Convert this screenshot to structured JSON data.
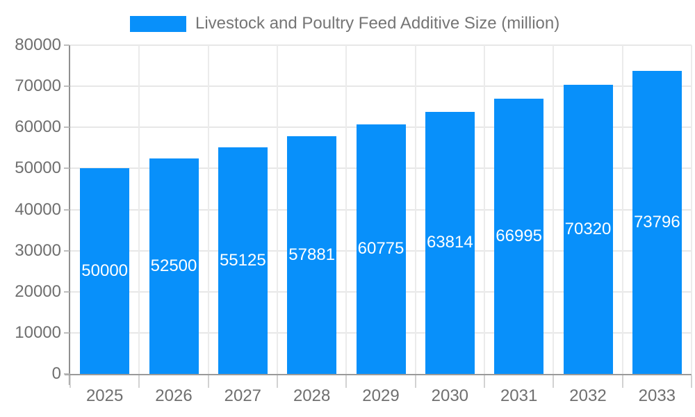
{
  "chart_data": {
    "type": "bar",
    "title": "Livestock and Poultry Feed Additive Size (million)",
    "categories": [
      "2025",
      "2026",
      "2027",
      "2028",
      "2029",
      "2030",
      "2031",
      "2032",
      "2033"
    ],
    "series": [
      {
        "name": "Livestock and Poultry Feed Additive Size (million)",
        "values": [
          50000,
          52500,
          55125,
          57881,
          60775,
          63814,
          66995,
          70320,
          73796
        ]
      }
    ],
    "xlabel": "",
    "ylabel": "",
    "ylim": [
      0,
      80000
    ],
    "ytick_step": 10000,
    "yticks": [
      0,
      10000,
      20000,
      30000,
      40000,
      50000,
      60000,
      70000,
      80000
    ],
    "grid": true,
    "legend_position": "top",
    "value_labels": "inside-center",
    "colors": {
      "bar": "#0890fa",
      "value_label": "#ffffff",
      "axis_text": "#6f6f6f",
      "legend_text": "#757575",
      "gridline": "#e7e7e7",
      "axis_line": "#8f8f8f"
    }
  }
}
